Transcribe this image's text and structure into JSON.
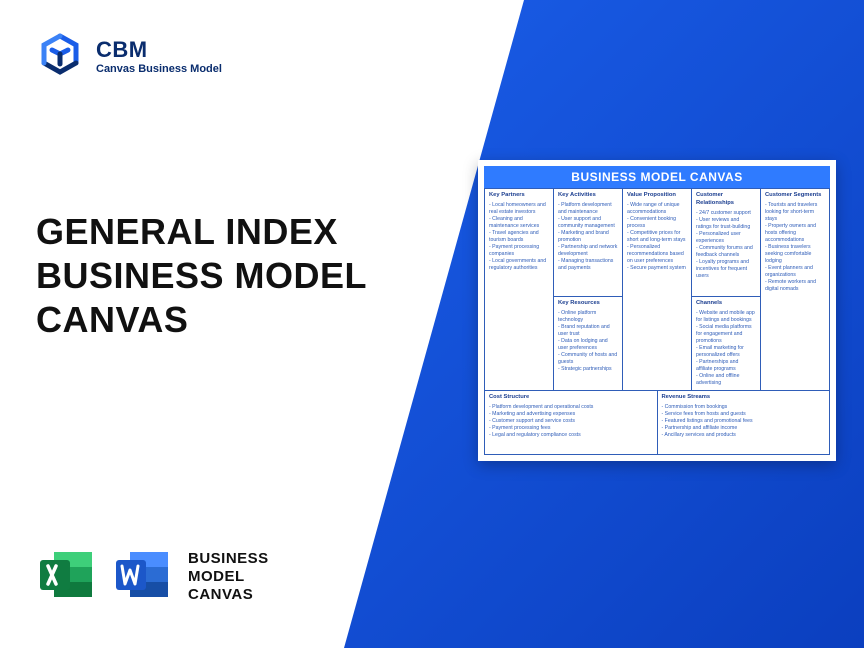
{
  "brand": {
    "abbr": "CBM",
    "sub": "Canvas Business Model",
    "logo_color_primary": "#1a5de8",
    "logo_color_dark": "#0a2d6e"
  },
  "headline": {
    "line1": "GENERAL INDEX",
    "line2": "BUSINESS MODEL",
    "line3": "CANVAS",
    "color": "#111111",
    "fontsize": 36
  },
  "apps": {
    "excel_colors": {
      "dark": "#0f7a3e",
      "mid": "#1fa35a",
      "light": "#3ecf7a",
      "tab": "#107c41"
    },
    "word_colors": {
      "dark": "#174ea6",
      "mid": "#2b6cd4",
      "light": "#4a8dff",
      "tab": "#1c57c9"
    },
    "label_line1": "BUSINESS",
    "label_line2": "MODEL",
    "label_line3": "CANVAS"
  },
  "background": {
    "blue_gradient_from": "#1a5de8",
    "blue_gradient_to": "#0b3fbf"
  },
  "canvas": {
    "title": "BUSINESS MODEL CANVAS",
    "title_bg": "#2f7bff",
    "title_color": "#ffffff",
    "border_color": "#2f5db8",
    "text_color": "#2f5db8",
    "heading_color": "#1a3d8f",
    "cells": {
      "key_partners": {
        "title": "Key Partners",
        "items": [
          "Local homeowners and real estate investors",
          "Cleaning and maintenance services",
          "Travel agencies and tourism boards",
          "Payment processing companies",
          "Local governments and regulatory authorities"
        ]
      },
      "key_activities": {
        "title": "Key Activities",
        "items": [
          "Platform development and maintenance",
          "User support and community management",
          "Marketing and brand promotion",
          "Partnership and network development",
          "Managing transactions and payments"
        ]
      },
      "value_proposition": {
        "title": "Value Proposition",
        "items": [
          "Wide range of unique accommodations",
          "Convenient booking process",
          "Competitive prices for short and long-term stays",
          "Personalized recommendations based on user preferences",
          "Secure payment system"
        ]
      },
      "customer_relationships": {
        "title": "Customer Relationships",
        "items": [
          "24/7 customer support",
          "User reviews and ratings for trust-building",
          "Personalized user experiences",
          "Community forums and feedback channels",
          "Loyalty programs and incentives for frequent users"
        ]
      },
      "customer_segments": {
        "title": "Customer Segments",
        "items": [
          "Tourists and travelers looking for short-term stays",
          "Property owners and hosts offering accommodations",
          "Business travelers seeking comfortable lodging",
          "Event planners and organizations",
          "Remote workers and digital nomads"
        ]
      },
      "key_resources": {
        "title": "Key Resources",
        "items": [
          "Online platform technology",
          "Brand reputation and user trust",
          "Data on lodging and user preferences",
          "Community of hosts and guests",
          "Strategic partnerships"
        ]
      },
      "channels": {
        "title": "Channels",
        "items": [
          "Website and mobile app for listings and bookings",
          "Social media platforms for engagement and promotions",
          "Email marketing for personalized offers",
          "Partnerships and affiliate programs",
          "Online and offline advertising"
        ]
      },
      "cost_structure": {
        "title": "Cost Structure",
        "items": [
          "Platform development and operational costs",
          "Marketing and advertising expenses",
          "Customer support and service costs",
          "Payment processing fees",
          "Legal and regulatory compliance costs"
        ]
      },
      "revenue_streams": {
        "title": "Revenue Streams",
        "items": [
          "Commission from bookings",
          "Service fees from hosts and guests",
          "Featured listings and promotional fees",
          "Partnership and affiliate income",
          "Ancillary services and products"
        ]
      }
    }
  }
}
